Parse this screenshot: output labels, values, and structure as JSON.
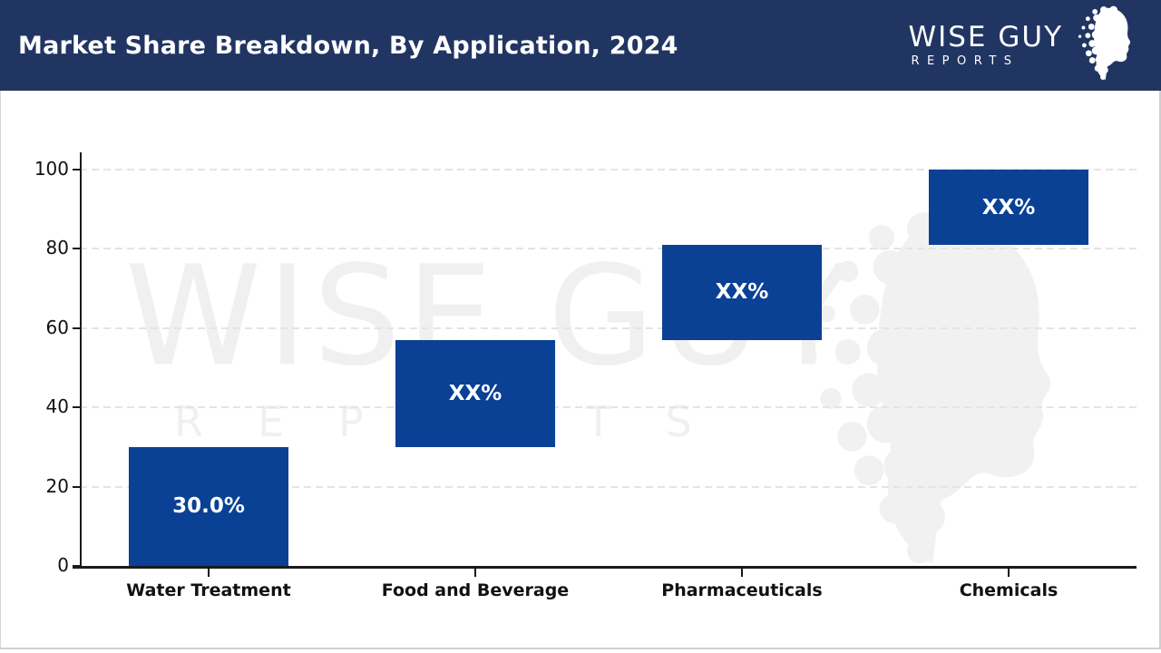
{
  "header": {
    "title": "Market Share Breakdown, By Application, 2024",
    "bg_color": "#213563",
    "logo": {
      "line1": "WISE GUY",
      "line2": "REPORTS"
    }
  },
  "watermark": {
    "line1": "WISE GUY",
    "line2": "REPORTS"
  },
  "chart_data": {
    "type": "bar",
    "subtype": "waterfall",
    "title": "Market Share Breakdown, By Application, 2024",
    "xlabel": "",
    "ylabel": "",
    "categories": [
      "Water Treatment",
      "Food and Beverage",
      "Pharmaceuticals",
      "Chemicals"
    ],
    "bars": [
      {
        "category": "Water Treatment",
        "start": 0,
        "end": 30,
        "label": "30.0%"
      },
      {
        "category": "Food and Beverage",
        "start": 30,
        "end": 57,
        "label": "XX%"
      },
      {
        "category": "Pharmaceuticals",
        "start": 57,
        "end": 81,
        "label": "XX%"
      },
      {
        "category": "Chemicals",
        "start": 81,
        "end": 100,
        "label": "XX%"
      }
    ],
    "yticks": [
      0,
      20,
      40,
      60,
      80,
      100
    ],
    "ylim": [
      0,
      104
    ],
    "grid": true,
    "grid_style": "dashed",
    "bar_color": "#0a4195",
    "label_color": "#ffffff",
    "legend": null
  }
}
